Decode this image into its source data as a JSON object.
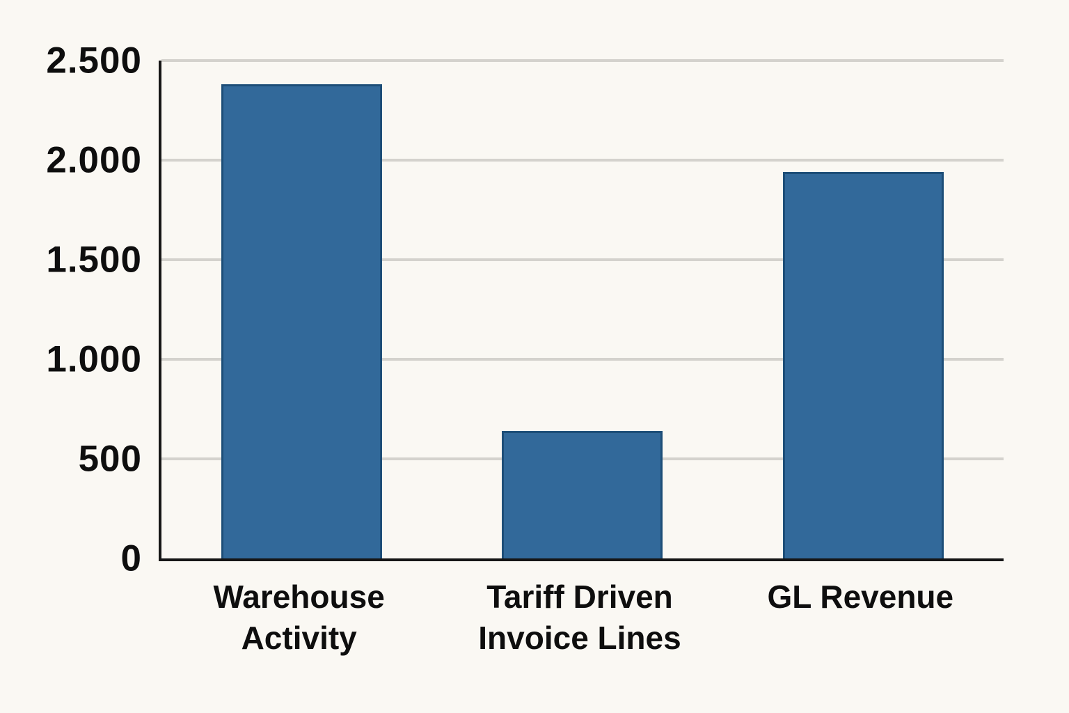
{
  "chart_data": {
    "type": "bar",
    "title": "",
    "xlabel": "",
    "ylabel": "",
    "categories": [
      "Warehouse\nActivity",
      "Tariff Driven\nInvoice Lines",
      "GL Revenue"
    ],
    "values": [
      2380,
      640,
      1940
    ],
    "ylim": [
      0,
      2500
    ],
    "yticks": [
      0,
      500,
      1000,
      1500,
      2000,
      2500
    ],
    "ytick_labels": [
      "0",
      "500",
      "1.000",
      "1.500",
      "2.000",
      "2.500"
    ],
    "grid": true,
    "legend": false,
    "colors": {
      "background": "#faf8f3",
      "bar_fill": "#32699a",
      "bar_border": "#1d4e78",
      "gridline": "#d4d2cd",
      "axis": "#161616",
      "text": "#0e0e0e"
    }
  }
}
